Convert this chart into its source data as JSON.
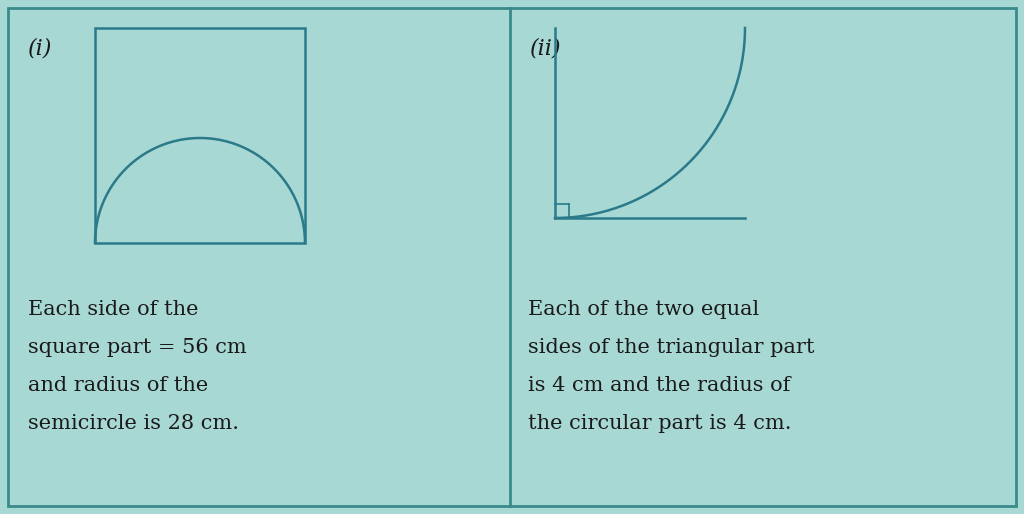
{
  "bg_color": "#a8d8d4",
  "shape_color": "#2a7a8a",
  "text_color": "#1a1a1a",
  "border_color": "#3a8a8a",
  "panel1_label": "(i)",
  "panel2_label": "(ii)",
  "panel1_text_line1": "Each side of the",
  "panel1_text_line2": "square part = 56 cm",
  "panel1_text_line3": "and radius of the",
  "panel1_text_line4": "semicircle is 28 cm.",
  "panel2_text_line1": "Each of the two equal",
  "panel2_text_line2": "sides of the triangular part",
  "panel2_text_line3": "is 4 cm and the radius of",
  "panel2_text_line4": "the circular part is 4 cm.",
  "font_size": 15,
  "label_font_size": 16
}
